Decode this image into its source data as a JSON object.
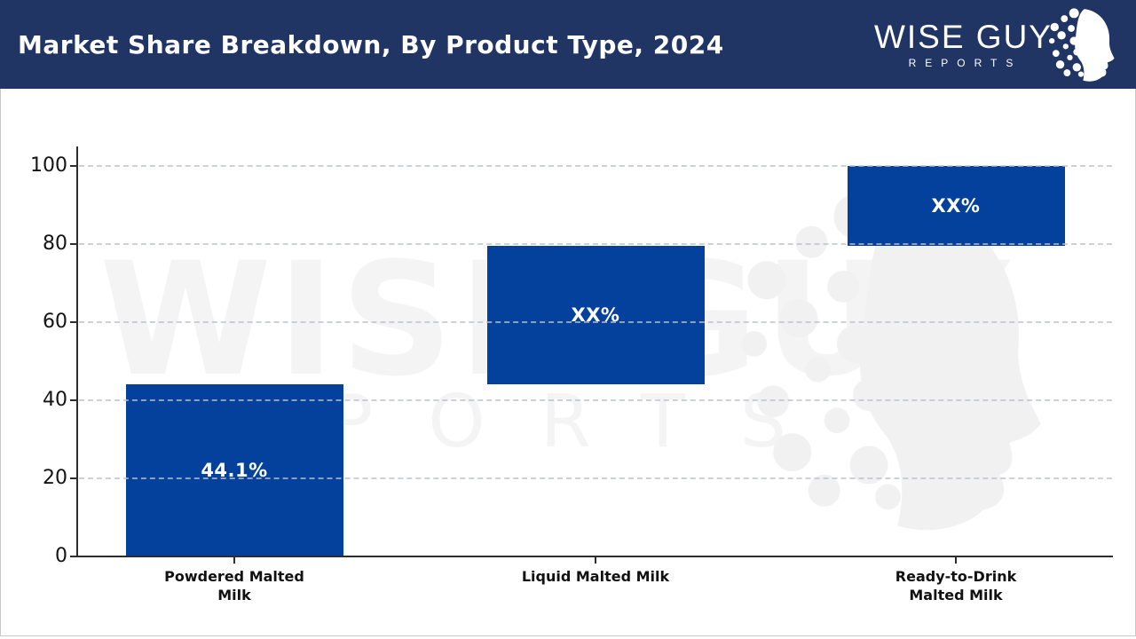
{
  "header": {
    "title": "Market Share Breakdown, By Product Type, 2024",
    "logo": {
      "brand": "WISE GUY",
      "sub": "REPORTS"
    }
  },
  "watermark": {
    "brand": "WISE GUY",
    "sub": "REPORTS"
  },
  "chart_data": {
    "type": "bar",
    "variant": "waterfall",
    "title": "Market Share Breakdown, By Product Type, 2024",
    "categories": [
      [
        "Powdered Malted",
        "Milk"
      ],
      [
        "Liquid Malted Milk"
      ],
      [
        "Ready-to-Drink",
        "Malted Milk"
      ]
    ],
    "bars": [
      {
        "category": "Powdered Malted Milk",
        "start": 0,
        "end": 44.1,
        "label": "44.1%"
      },
      {
        "category": "Liquid Malted Milk",
        "start": 44.1,
        "end": 79.5,
        "label": "XX%"
      },
      {
        "category": "Ready-to-Drink Malted Milk",
        "start": 79.5,
        "end": 100,
        "label": "XX%"
      }
    ],
    "values": [
      44.1,
      null,
      null
    ],
    "labels": [
      "44.1%",
      "XX%",
      "XX%"
    ],
    "xlabel": "",
    "ylabel": "",
    "ylim": [
      0,
      100
    ],
    "yticks": [
      0,
      20,
      40,
      60,
      80,
      100
    ],
    "grid": "horizontal-dashed",
    "legend": null,
    "colors": {
      "bar": "#04419c",
      "bar_label": "#ffffff",
      "header_bg": "#203564",
      "gridline": "#c9cdd2",
      "axis": "#2d2d2d",
      "card_border": "#c9c9c9",
      "watermark": "#f4f4f4"
    }
  }
}
